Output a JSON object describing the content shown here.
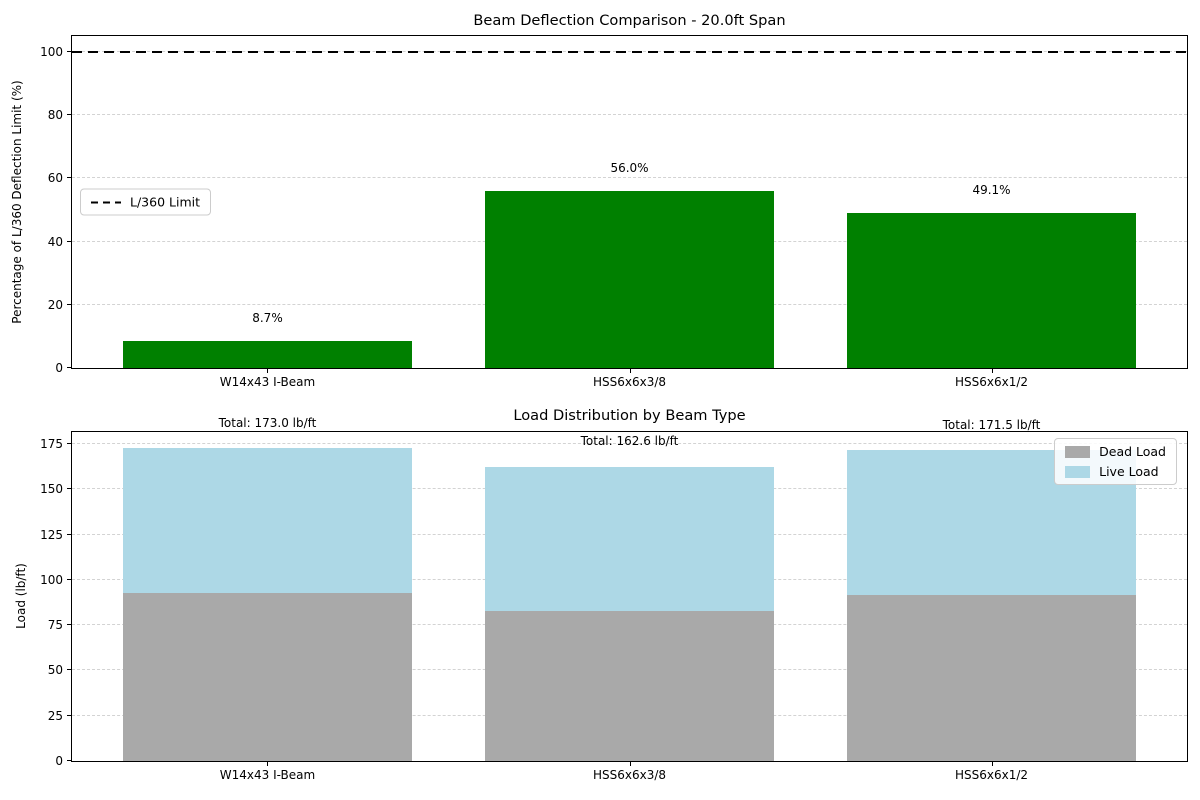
{
  "charts": [
    {
      "type": "bar",
      "title": "Beam Deflection Comparison - 20.0ft Span",
      "ylabel": "Percentage of L/360 Deflection Limit (%)",
      "categories": [
        "W14x43 I-Beam",
        "HSS6x6x3/8",
        "HSS6x6x1/2"
      ],
      "values": [
        8.7,
        56.0,
        49.1
      ],
      "bar_labels": [
        "8.7%",
        "56.0%",
        "49.1%"
      ],
      "bar_color": "#008000",
      "yticks": [
        0,
        20,
        40,
        60,
        80,
        100
      ],
      "ylim": [
        0,
        105
      ],
      "grid": "dashed-horizontal",
      "reference_line": {
        "value": 100,
        "color": "#000000",
        "style": "dashed"
      },
      "legend": {
        "position": "center-left",
        "entries": [
          {
            "label": "L/360 Limit",
            "marker": "dashed-line",
            "color": "#000000"
          }
        ]
      }
    },
    {
      "type": "stacked-bar",
      "title": "Load Distribution by Beam Type",
      "ylabel": "Load (lb/ft)",
      "categories": [
        "W14x43 I-Beam",
        "HSS6x6x3/8",
        "HSS6x6x1/2"
      ],
      "series": [
        {
          "name": "Dead Load",
          "color": "#a9a9a9",
          "values": [
            93.0,
            82.6,
            91.5
          ]
        },
        {
          "name": "Live Load",
          "color": "#add8e6",
          "values": [
            80.0,
            80.0,
            80.0
          ]
        }
      ],
      "totals": [
        173.0,
        162.6,
        171.5
      ],
      "total_labels": [
        "Total: 173.0 lb/ft",
        "Total: 162.6 lb/ft",
        "Total: 171.5 lb/ft"
      ],
      "yticks": [
        0,
        25,
        50,
        75,
        100,
        125,
        150,
        175
      ],
      "ylim": [
        0,
        181.7
      ],
      "grid": "dashed-horizontal",
      "legend": {
        "position": "top-right",
        "entries": [
          {
            "label": "Dead Load",
            "marker": "patch",
            "color": "#a9a9a9"
          },
          {
            "label": "Live Load",
            "marker": "patch",
            "color": "#add8e6"
          }
        ]
      }
    }
  ]
}
